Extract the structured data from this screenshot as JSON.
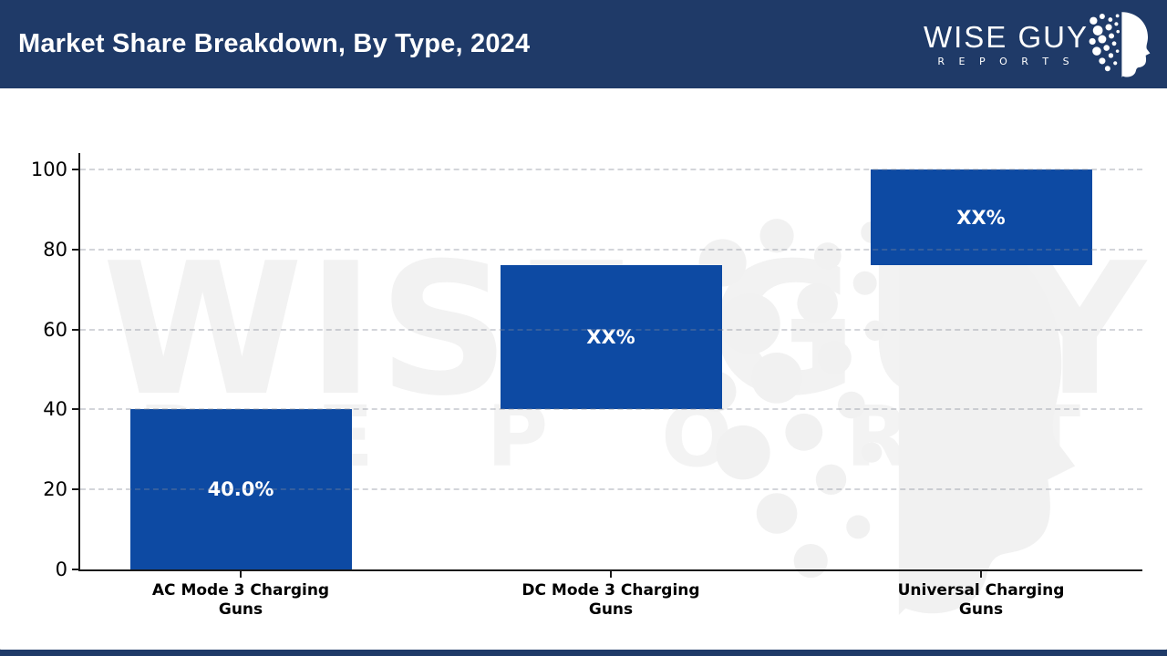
{
  "header": {
    "title": "Market Share Breakdown, By Type, 2024",
    "logo": {
      "wordmark": "WISE GUY",
      "subtext": "R E P O R T S"
    }
  },
  "watermark": {
    "line1": "WISE GUY",
    "line2": "R E P O R T S"
  },
  "chart_data": {
    "type": "bar",
    "subtype": "waterfall",
    "title": "Market Share Breakdown, By Type, 2024",
    "categories": [
      [
        "AC Mode 3 Charging",
        "Guns"
      ],
      [
        "DC Mode 3 Charging",
        "Guns"
      ],
      [
        "Universal Charging",
        "Guns"
      ]
    ],
    "segments": [
      {
        "name": "AC Mode 3 Charging Guns",
        "start": 0,
        "end": 40,
        "value_label": "40.0%"
      },
      {
        "name": "DC Mode 3 Charging Guns",
        "start": 40,
        "end": 76,
        "value_label": "XX%"
      },
      {
        "name": "Universal Charging Guns",
        "start": 76,
        "end": 100,
        "value_label": "XX%"
      }
    ],
    "ylim": [
      0,
      105
    ],
    "yticks": [
      0,
      20,
      40,
      60,
      80,
      100
    ],
    "grid": "horizontal-dashed",
    "legend": "none",
    "xlabel": "",
    "ylabel": ""
  },
  "colors": {
    "header_bg": "#1f3a68",
    "footer_bg": "#1f3a68",
    "bar": "#0d4aa3",
    "bar_label": "#ffffff",
    "title_text": "#ffffff",
    "axis": "#1a1a1a",
    "watermark": "#f2f2f2"
  }
}
